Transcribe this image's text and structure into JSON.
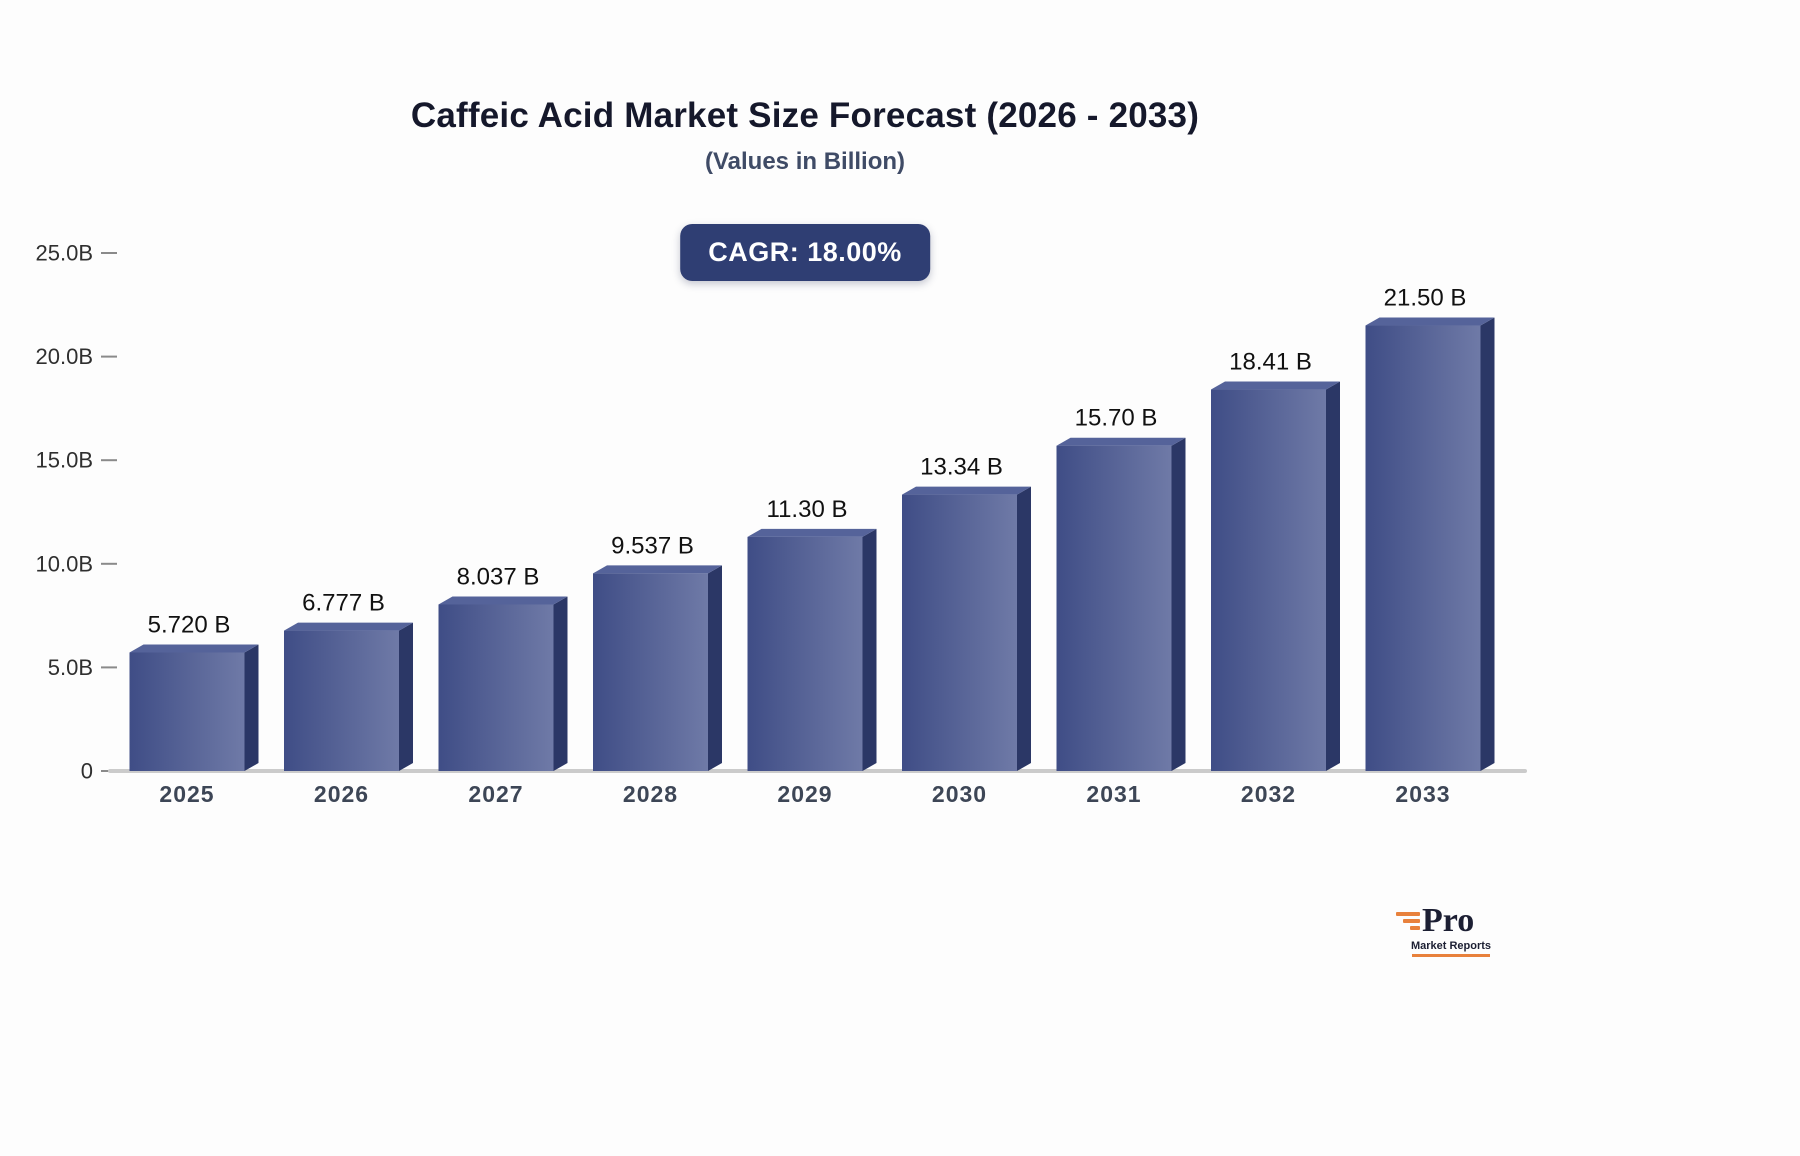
{
  "header": {
    "title": "Caffeic Acid Market Size Forecast (2026 - 2033)",
    "subtitle": "(Values in Billion)",
    "cagr_badge": "CAGR: 18.00%"
  },
  "logo": {
    "name": "Pro",
    "sub": "Market Reports"
  },
  "colors": {
    "bar_gradient_left": "#3f4d86",
    "bar_gradient_right": "#6f7aa7",
    "bar_top": "#55639a",
    "bar_side": "#2b3766",
    "badge_bg": "#2f3e73",
    "baseline": "#cbcbcb",
    "tick": "#8a8a8a",
    "axis_text": "#2f2f2f",
    "x_label_text": "#3d4656",
    "value_label_text": "#111111",
    "logo_accent": "#e8813c"
  },
  "chart_data": {
    "type": "bar",
    "title": "Caffeic Acid Market Size Forecast (2026 - 2033)",
    "subtitle": "(Values in Billion)",
    "xlabel": "",
    "ylabel": "",
    "categories": [
      "2025",
      "2026",
      "2027",
      "2028",
      "2029",
      "2030",
      "2031",
      "2032",
      "2033"
    ],
    "values": [
      5.72,
      6.777,
      8.037,
      9.537,
      11.3,
      13.34,
      15.7,
      18.41,
      21.5
    ],
    "value_labels": [
      "5.720 B",
      "6.777 B",
      "8.037 B",
      "9.537 B",
      "11.30 B",
      "13.34 B",
      "15.70 B",
      "18.41 B",
      "21.50 B"
    ],
    "unit": "Billion",
    "cagr_percent": 18.0,
    "ylim": [
      0,
      25
    ],
    "yticks": [
      0,
      5,
      10,
      15,
      20,
      25
    ],
    "ytick_labels": [
      "0",
      "5.0B",
      "10.0B",
      "15.0B",
      "20.0B",
      "25.0B"
    ],
    "grid": false,
    "legend": null
  }
}
